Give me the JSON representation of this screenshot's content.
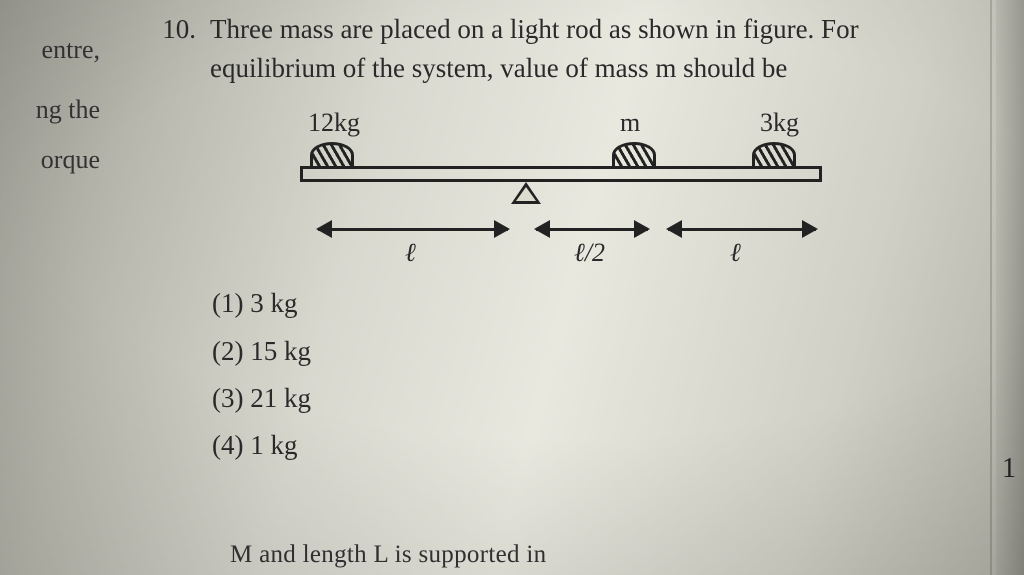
{
  "margin": {
    "w1": "entre,",
    "w2": "ng the",
    "w3": "orque"
  },
  "question": {
    "number": "10.",
    "text": "Three mass are placed on a light rod as  shown in figure. For equilibrium of the system, value of mass m should be"
  },
  "figure": {
    "labels": {
      "left": "12kg",
      "mid": "m",
      "right": "3kg"
    },
    "segments": {
      "s1": "ℓ",
      "s2": "ℓ/2",
      "s3": "ℓ"
    },
    "colors": {
      "stroke": "#222222",
      "bg": "#dcdccf"
    },
    "masses": [
      {
        "value_kg": 12,
        "x_from_pivot_l": -1.0
      },
      {
        "value_kg": null,
        "x_from_pivot_l": 0.5
      },
      {
        "value_kg": 3,
        "x_from_pivot_l": 1.5
      }
    ]
  },
  "options": {
    "o1": "(1)  3 kg",
    "o2": "(2)  15 kg",
    "o3": "(3)  21 kg",
    "o4": "(4)  1 kg"
  },
  "fragments": {
    "bottom": "M and length L is supported in",
    "right_num": "1"
  }
}
